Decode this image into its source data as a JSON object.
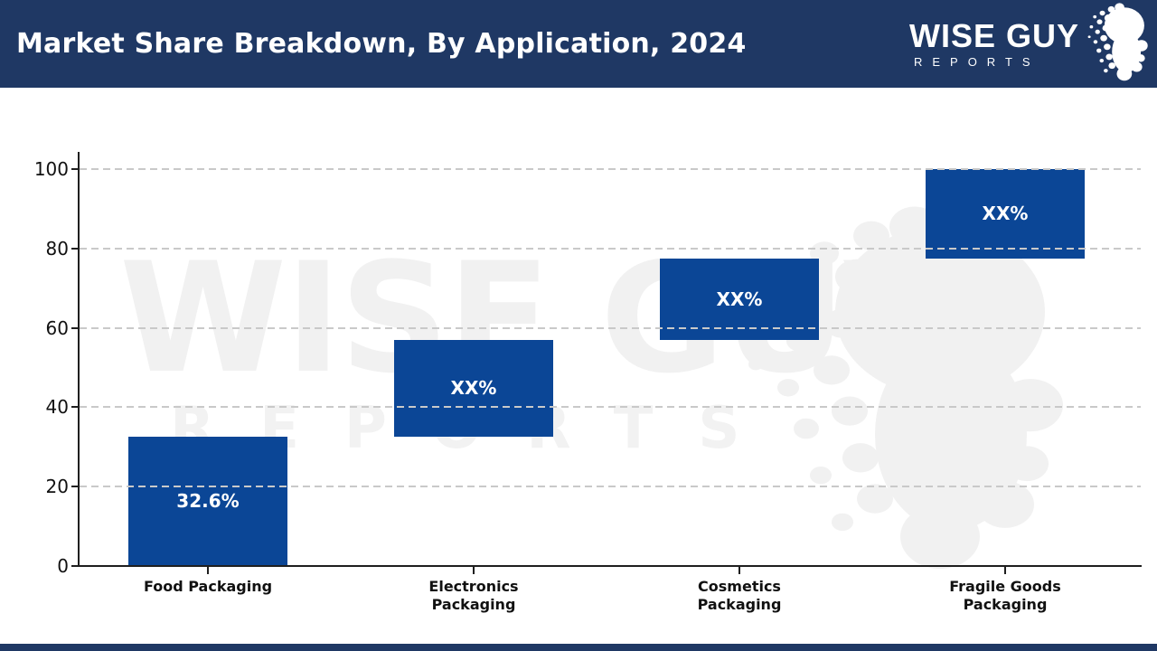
{
  "header": {
    "title": "Market Share Breakdown, By Application, 2024",
    "logo": {
      "line1": "WISE GUY",
      "line2": "REPORTS"
    }
  },
  "watermark": {
    "line1": "WISE GUY",
    "line2": "REPORTS"
  },
  "colors": {
    "header_bg": "#1f3864",
    "footer_bg": "#1f3864",
    "bar": "#0b4696",
    "bar_label": "#ffffff",
    "axis": "#1f1f1f",
    "gridline": "#c9c9c9",
    "tick_label": "#111111",
    "watermark": "#f1f1f1"
  },
  "chart_data": {
    "type": "bar",
    "subtype": "waterfall",
    "title": "Market Share Breakdown, By Application, 2024",
    "categories": [
      "Food Packaging",
      "Electronics\nPackaging",
      "Cosmetics\nPackaging",
      "Fragile Goods\nPackaging"
    ],
    "segments": [
      {
        "category": "Food Packaging",
        "start": 0,
        "end": 32.6,
        "label": "32.6%"
      },
      {
        "category": "Electronics Packaging",
        "start": 32.6,
        "end": 57.0,
        "label": "XX%"
      },
      {
        "category": "Cosmetics Packaging",
        "start": 57.0,
        "end": 77.5,
        "label": "XX%"
      },
      {
        "category": "Fragile Goods Packaging",
        "start": 77.5,
        "end": 100,
        "label": "XX%"
      }
    ],
    "ylabel": "",
    "xlabel": "",
    "yticks": [
      0,
      20,
      40,
      60,
      80,
      100
    ],
    "ylim": [
      0,
      104
    ],
    "grid": "horizontal-dashed",
    "legend": "none"
  }
}
